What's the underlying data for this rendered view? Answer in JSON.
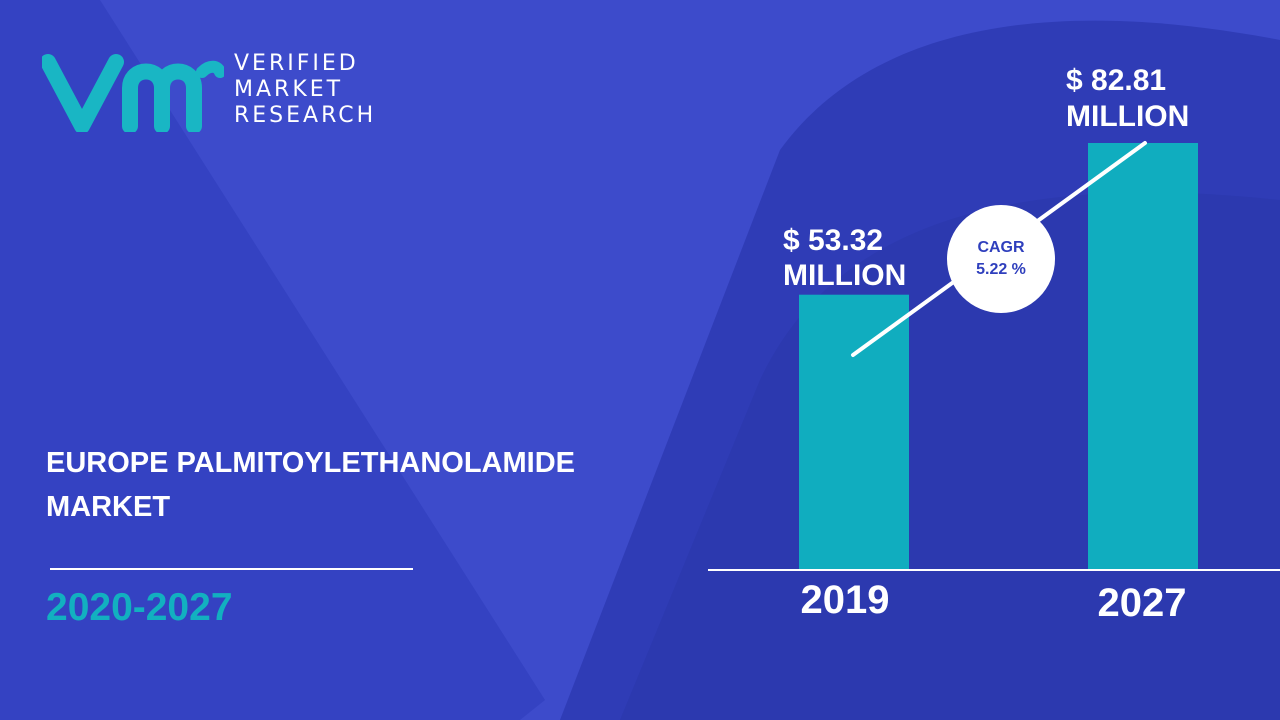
{
  "brand": {
    "line1": "VERIFIED",
    "line2": "MARKET",
    "line3": "RESEARCH",
    "logo_color": "#19b6c4"
  },
  "title_lines": [
    "EUROPE PALMITOYLETHANOLAMIDE",
    "MARKET"
  ],
  "period": "2020-2027",
  "colors": {
    "background": "#3d4bcb",
    "bar": "#10adbf",
    "accent": "#12b0c0",
    "text": "#ffffff"
  },
  "chart_data": {
    "type": "bar",
    "categories": [
      "2019",
      "2027"
    ],
    "values": [
      53.32,
      82.81
    ],
    "value_labels": [
      [
        "$ 53.32",
        "MILLION"
      ],
      [
        "$ 82.81",
        "MILLION"
      ]
    ],
    "unit": "MILLION",
    "cagr_label": "CAGR",
    "cagr_value": "5.22 %",
    "title": "",
    "xlabel": "",
    "ylabel": "",
    "ylim": [
      0,
      82.81
    ]
  }
}
